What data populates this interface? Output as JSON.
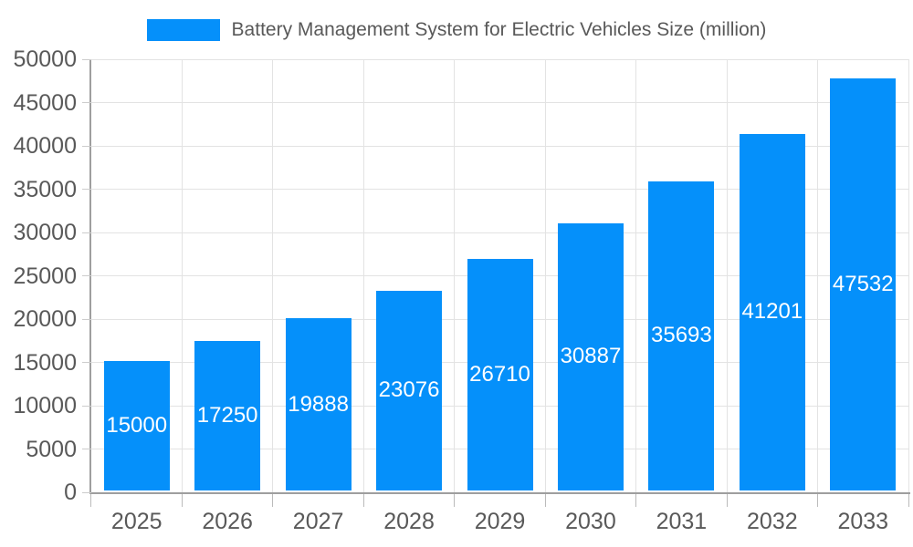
{
  "chart_data": {
    "type": "bar",
    "title": "Battery Management System for Electric Vehicles Size (million)",
    "categories": [
      "2025",
      "2026",
      "2027",
      "2028",
      "2029",
      "2030",
      "2031",
      "2032",
      "2033"
    ],
    "values": [
      15000,
      17250,
      19888,
      23076,
      26710,
      30887,
      35693,
      41201,
      47532
    ],
    "ylim": [
      0,
      50000
    ],
    "ytick_step": 5000,
    "ytick_labels": [
      "0",
      "5000",
      "10000",
      "15000",
      "20000",
      "25000",
      "30000",
      "35000",
      "40000",
      "45000",
      "50000"
    ],
    "grid": true,
    "legend_position": "top-center",
    "colors": {
      "bar": "#0590fa",
      "bar_label": "#ffffff",
      "axis": "#9e9e9e",
      "grid": "#e3e3e3",
      "tick": "#bbbbbb",
      "text": "#595959",
      "background": "#ffffff"
    }
  }
}
